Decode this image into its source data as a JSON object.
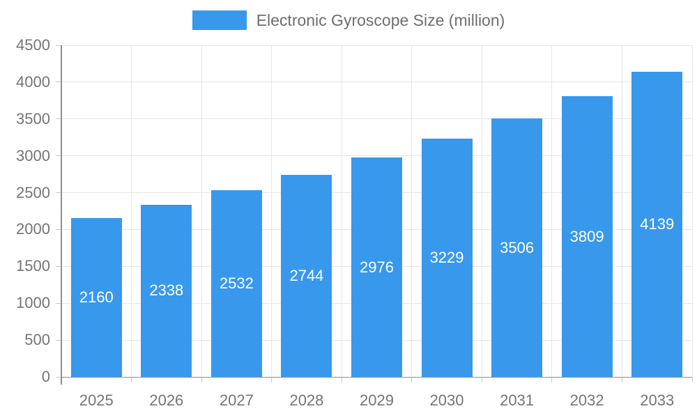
{
  "chart_data": {
    "type": "bar",
    "title": "Electronic Gyroscope Size (million)",
    "categories": [
      "2025",
      "2026",
      "2027",
      "2028",
      "2029",
      "2030",
      "2031",
      "2032",
      "2033"
    ],
    "values": [
      2160,
      2338,
      2532,
      2744,
      2976,
      3229,
      3506,
      3809,
      4139
    ],
    "xlabel": "",
    "ylabel": "",
    "ylim": [
      0,
      4500
    ],
    "ytick_step": 500,
    "ytick_labels": [
      "0",
      "500",
      "1000",
      "1500",
      "2000",
      "2500",
      "3000",
      "3500",
      "4000",
      "4500"
    ],
    "grid": true,
    "legend_position": "top-center",
    "colors": {
      "bar": "#3898EC",
      "bar_label": "#FFFFFF",
      "axis_text": "#757575",
      "legend_text": "#6E6E6E",
      "grid": "#E6E6E6",
      "axis_line": "#8F8F8F",
      "tick": "#C9C9C9",
      "background": "#FFFFFF"
    }
  }
}
